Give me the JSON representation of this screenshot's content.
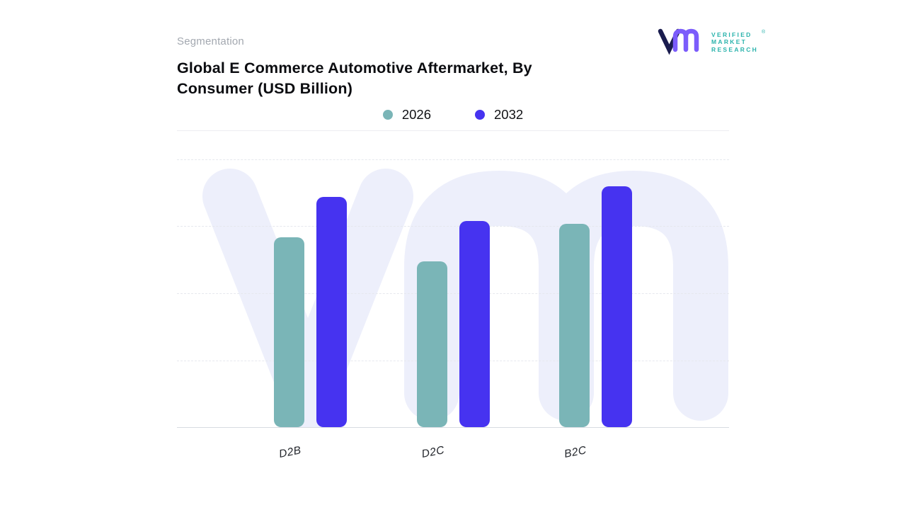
{
  "segmentation_label": "Segmentation",
  "title": {
    "line1": "Global E Commerce Automotive Aftermarket, By",
    "line2": "Consumer (USD Billion)"
  },
  "brand": {
    "monogram": "VM",
    "name_lines": [
      "VERIFIED",
      "MARKET",
      "RESEARCH"
    ],
    "registered_mark": "®",
    "teal": "#2bb3ac",
    "navy": "#1a1c4e",
    "purple": "#7b5cfb"
  },
  "colors": {
    "series_2026": "#7ab5b7",
    "series_2032": "#4633f0",
    "watermark": "#edeffb",
    "gridline": "#e6e8ee",
    "baseline": "#d8dbe1",
    "title_text": "#0b0c10",
    "segmentation_text": "#a3a8b0"
  },
  "chart_data": {
    "type": "bar",
    "title": "Global E Commerce Automotive Aftermarket, By Consumer (USD Billion)",
    "unit": "USD Billion",
    "categories": [
      "D2B",
      "D2C",
      "B2C"
    ],
    "series": [
      {
        "name": "2026",
        "color": "#7ab5b7",
        "values": [
          71,
          62,
          76
        ]
      },
      {
        "name": "2032",
        "color": "#4633f0",
        "values": [
          86,
          77,
          90
        ]
      }
    ],
    "ylim": [
      0,
      100
    ],
    "y_axis_labels_shown": false,
    "values_are_relative_estimates": true,
    "grid": "horizontal-dashed",
    "legend_position": "top-center",
    "watermark_text": "vm"
  }
}
